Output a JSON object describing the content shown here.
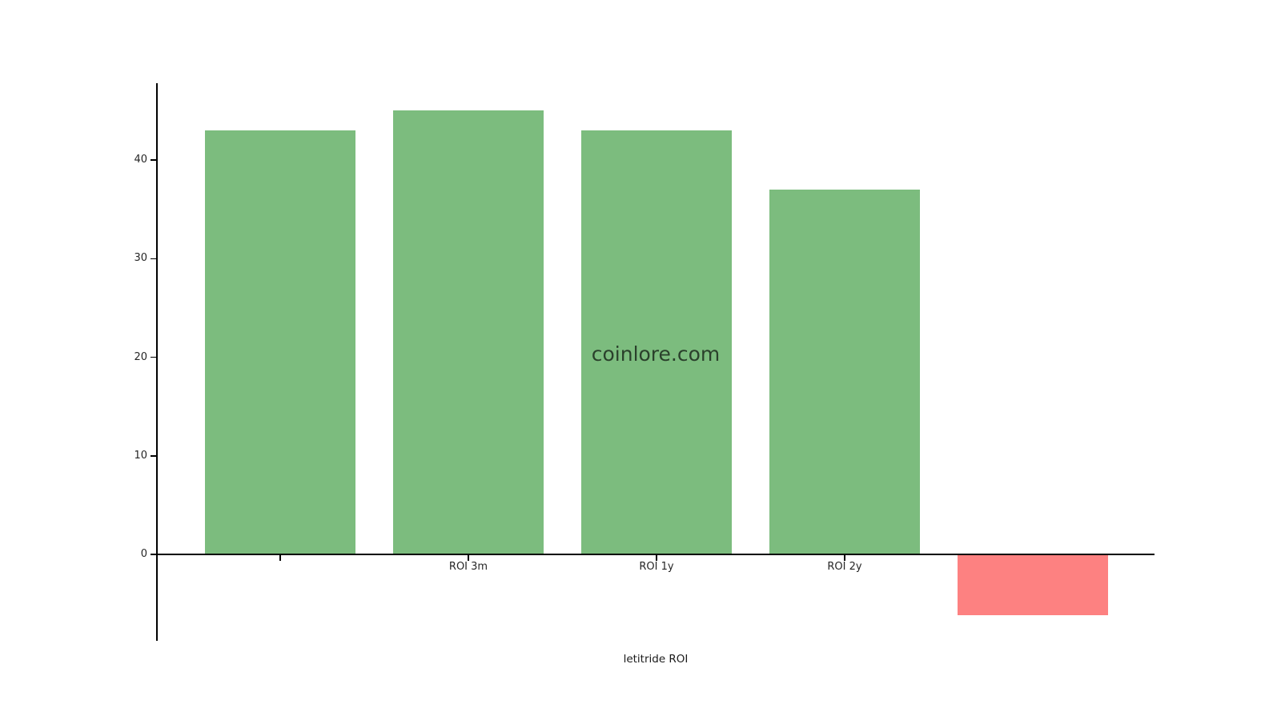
{
  "chart_data": {
    "type": "bar",
    "xlabel": "letitride ROI",
    "watermark": "coinlore.com",
    "categories": [
      "",
      "ROI 3m",
      "ROI 1y",
      "ROI 2y",
      ""
    ],
    "values": [
      43,
      45,
      43,
      37,
      -6.2
    ],
    "yticks": [
      0,
      10,
      20,
      30,
      40
    ],
    "ylim": [
      -8.8,
      47.8
    ],
    "grid": false,
    "legend": false,
    "colors": {
      "positive": "#7cbc7e",
      "negative": "#fd8181",
      "axis": "#000000",
      "tick_text": "#262626",
      "watermark": "rgba(0,0,0,0.66)",
      "background": "#ffffff"
    }
  }
}
